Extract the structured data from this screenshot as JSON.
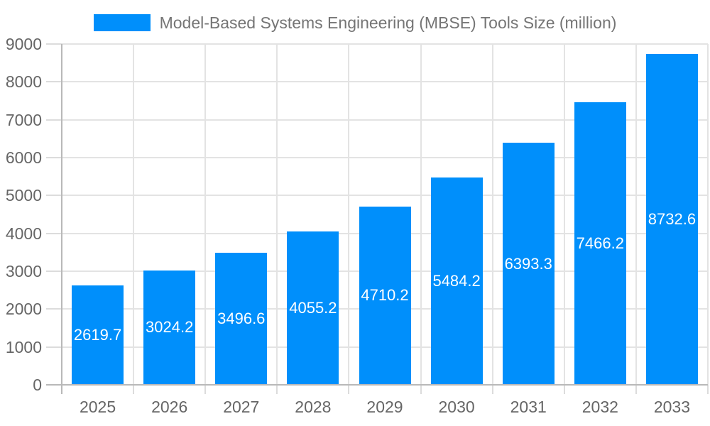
{
  "chart_data": {
    "type": "bar",
    "title": "Model-Based Systems Engineering (MBSE) Tools Size (million)",
    "legend": {
      "position": "top",
      "label": "Model-Based Systems Engineering (MBSE) Tools Size (million)"
    },
    "categories": [
      "2025",
      "2026",
      "2027",
      "2028",
      "2029",
      "2030",
      "2031",
      "2032",
      "2033"
    ],
    "values": [
      2619.7,
      3024.2,
      3496.6,
      4055.2,
      4710.2,
      5484.2,
      6393.3,
      7466.2,
      8732.6
    ],
    "data_labels": [
      "2619.7",
      "3024.2",
      "3496.6",
      "4055.2",
      "4710.2",
      "5484.2",
      "6393.3",
      "7466.2",
      "8732.6"
    ],
    "xlabel": "",
    "ylabel": "",
    "ylim": [
      0,
      9000
    ],
    "ytick_step": 1000,
    "yticks": [
      "0",
      "1000",
      "2000",
      "3000",
      "4000",
      "5000",
      "6000",
      "7000",
      "8000",
      "9000"
    ],
    "grid": true,
    "colors": {
      "bar": "#008FFB",
      "grid_line": "#e3e3e3",
      "tick_mark": "#dcdcdc",
      "axis_line": "#b9b9b9",
      "tick_label": "#666666",
      "legend_text": "#757575",
      "bar_label": "#ffffff",
      "background": "#ffffff"
    }
  }
}
